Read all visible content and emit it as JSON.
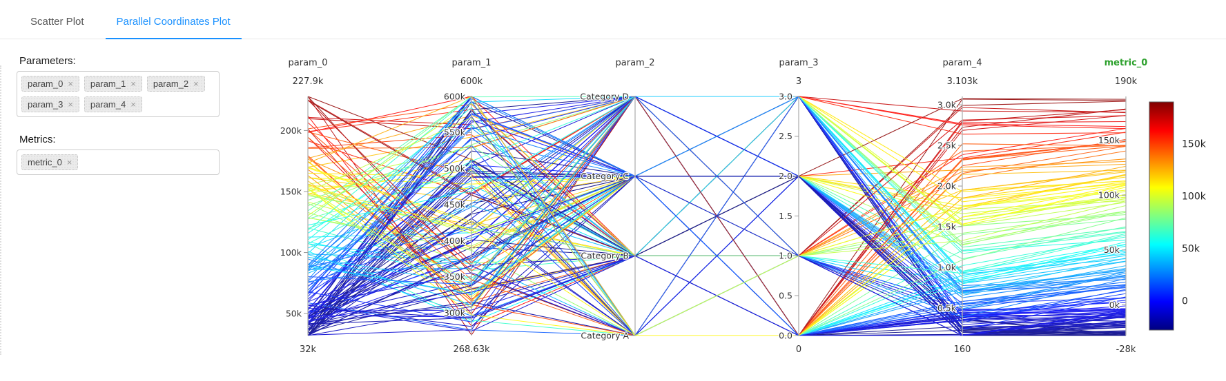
{
  "tabbar": {
    "tabs": [
      {
        "label": "Scatter Plot",
        "active": false
      },
      {
        "label": "Parallel Coordinates Plot",
        "active": true
      }
    ]
  },
  "sidebar": {
    "parameters_label": "Parameters:",
    "parameters": [
      "param_0",
      "param_1",
      "param_2",
      "param_3",
      "param_4"
    ],
    "metrics_label": "Metrics:",
    "metrics": [
      "metric_0"
    ],
    "remove_glyph": "×"
  },
  "colors": {
    "tab_active": "#1890ff",
    "tab_inactive": "#555555",
    "metric_axis_title": "#2ca02c",
    "axis_line": "#b0b0b0",
    "tick_text": "#333333"
  },
  "chart_data": {
    "type": "parallel-coordinates",
    "colorscale": "jet",
    "color_by": "metric_0",
    "color_range": [
      -28000,
      190000
    ],
    "line_count": 170,
    "seed": 7,
    "axes": [
      {
        "name": "param_0",
        "title": "param_0",
        "top_label": "227.9k",
        "bottom_label": "32k",
        "min": 32000,
        "max": 227900,
        "ticks": [
          {
            "v": 200000,
            "label": "200k"
          },
          {
            "v": 150000,
            "label": "150k"
          },
          {
            "v": 100000,
            "label": "100k"
          },
          {
            "v": 50000,
            "label": "50k"
          }
        ]
      },
      {
        "name": "param_1",
        "title": "param_1",
        "top_label": "600k",
        "bottom_label": "268.63k",
        "min": 268630,
        "max": 600000,
        "ticks": [
          {
            "v": 600000,
            "label": "600k"
          },
          {
            "v": 550000,
            "label": "550k"
          },
          {
            "v": 500000,
            "label": "500k"
          },
          {
            "v": 450000,
            "label": "450k"
          },
          {
            "v": 400000,
            "label": "400k"
          },
          {
            "v": 350000,
            "label": "350k"
          },
          {
            "v": 300000,
            "label": "300k"
          }
        ]
      },
      {
        "name": "param_2",
        "title": "param_2",
        "type": "category",
        "categories": [
          "Category A",
          "Category B",
          "Category C",
          "Category D"
        ]
      },
      {
        "name": "param_3",
        "title": "param_3",
        "top_label": "3",
        "bottom_label": "0",
        "min": 0,
        "max": 3,
        "ticks": [
          {
            "v": 3,
            "label": "3.0"
          },
          {
            "v": 2.5,
            "label": "2.5"
          },
          {
            "v": 2,
            "label": "2.0"
          },
          {
            "v": 1.5,
            "label": "1.5"
          },
          {
            "v": 1,
            "label": "1.0"
          },
          {
            "v": 0.5,
            "label": "0.5"
          },
          {
            "v": 0,
            "label": "0.0"
          }
        ]
      },
      {
        "name": "param_4",
        "title": "param_4",
        "top_label": "3.103k",
        "bottom_label": "160",
        "min": 160,
        "max": 3103,
        "ticks": [
          {
            "v": 3000,
            "label": "3.0k"
          },
          {
            "v": 2500,
            "label": "2.5k"
          },
          {
            "v": 2000,
            "label": "2.0k"
          },
          {
            "v": 1500,
            "label": "1.5k"
          },
          {
            "v": 1000,
            "label": "1.0k"
          },
          {
            "v": 500,
            "label": "0.5k"
          }
        ]
      },
      {
        "name": "metric_0",
        "title": "metric_0",
        "is_metric": true,
        "top_label": "190k",
        "bottom_label": "-28k",
        "min": -28000,
        "max": 190000,
        "ticks": [
          {
            "v": 150000,
            "label": "150k"
          },
          {
            "v": 100000,
            "label": "100k"
          },
          {
            "v": 50000,
            "label": "50k"
          },
          {
            "v": 0,
            "label": "0k"
          }
        ]
      }
    ],
    "colorbar": {
      "min": -28000,
      "max": 190000,
      "ticks": [
        {
          "v": 150000,
          "label": "150k"
        },
        {
          "v": 100000,
          "label": "100k"
        },
        {
          "v": 50000,
          "label": "50k"
        },
        {
          "v": 0,
          "label": "0"
        }
      ]
    }
  }
}
